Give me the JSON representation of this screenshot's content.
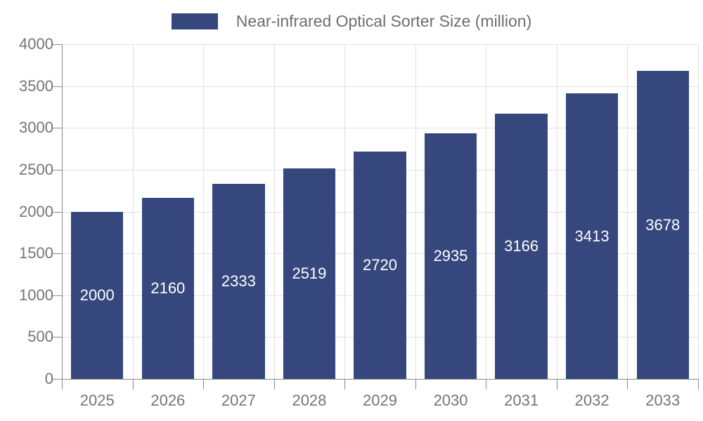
{
  "chart_data": {
    "type": "bar",
    "title": "",
    "legend": {
      "label": "Near-infrared Optical Sorter Size (million)",
      "position": "top-center"
    },
    "categories": [
      "2025",
      "2026",
      "2027",
      "2028",
      "2029",
      "2030",
      "2031",
      "2032",
      "2033"
    ],
    "series": [
      {
        "name": "Near-infrared Optical Sorter Size (million)",
        "values": [
          2000,
          2160,
          2333,
          2519,
          2720,
          2935,
          3166,
          3413,
          3678
        ]
      }
    ],
    "value_labels": [
      "2000",
      "2160",
      "2333",
      "2519",
      "2720",
      "2935",
      "3166",
      "3413",
      "3678"
    ],
    "xlabel": "",
    "ylabel": "",
    "ylim": [
      0,
      4000
    ],
    "ytick_step": 500,
    "ytick_labels": [
      "0",
      "500",
      "1000",
      "1500",
      "2000",
      "2500",
      "3000",
      "3500",
      "4000"
    ],
    "grid": true,
    "colors": {
      "bar": "#35477D",
      "axis": "#8A8A8A",
      "grid": "#E0E0E0",
      "tick_label": "#757575",
      "value_label": "#FFFFFF",
      "legend_text": "#6E6E6E",
      "background": "#FFFFFF"
    }
  }
}
